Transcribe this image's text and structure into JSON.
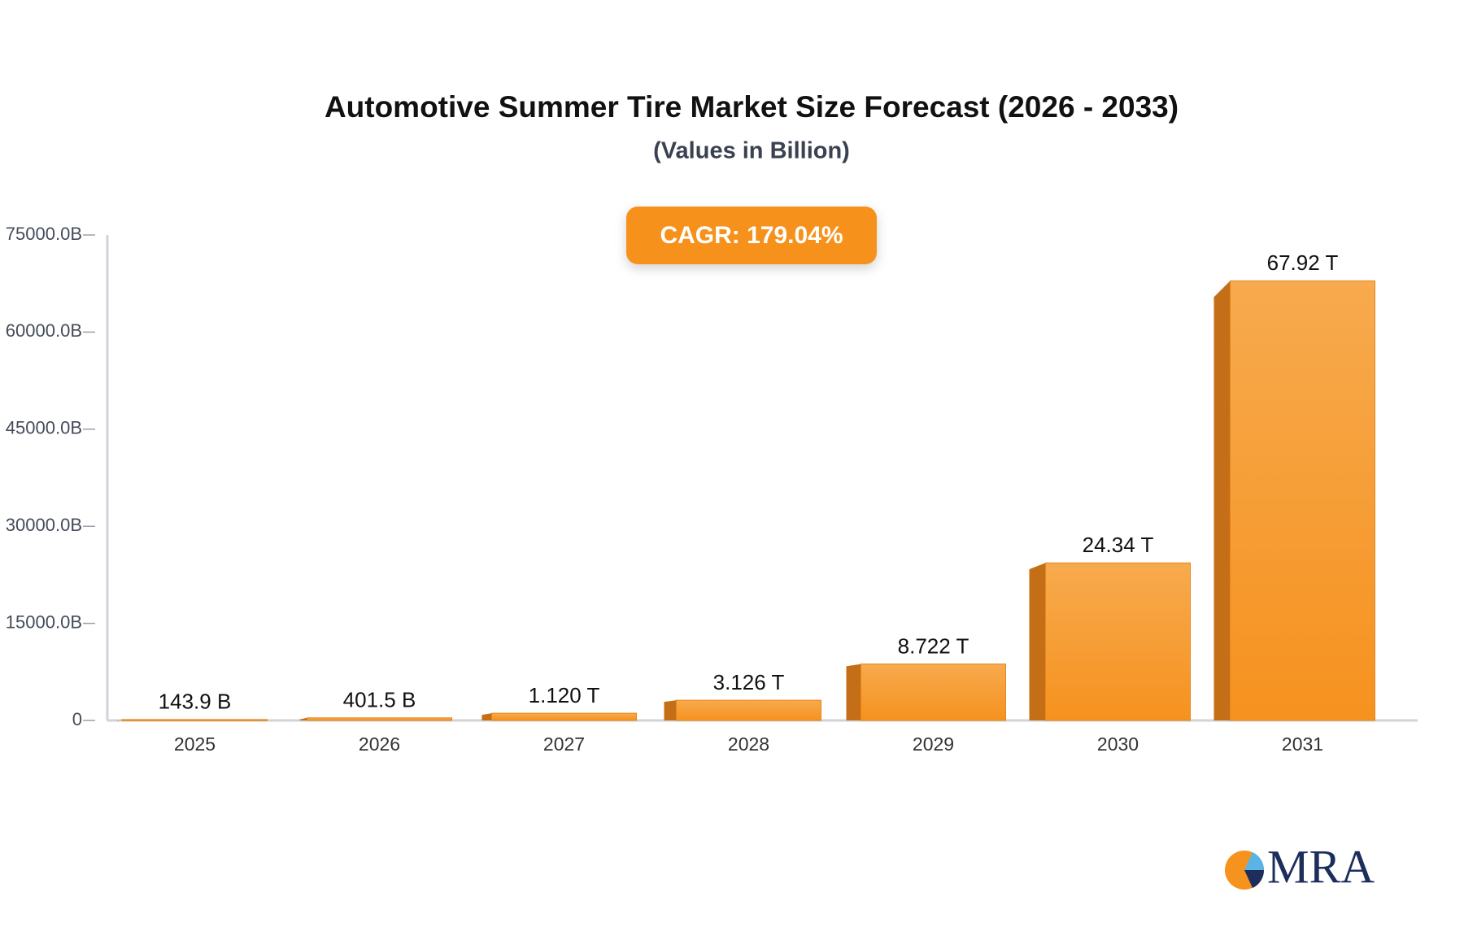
{
  "chart_data": {
    "type": "bar",
    "title": "Automotive Summer Tire Market Size Forecast (2026 - 2033)",
    "subtitle": "(Values in Billion)",
    "cagr": "CAGR: 179.04%",
    "categories": [
      "2025",
      "2026",
      "2027",
      "2028",
      "2029",
      "2030",
      "2031"
    ],
    "values": [
      143.9,
      401.5,
      1120,
      3126,
      8722,
      24340,
      67920
    ],
    "value_labels": [
      "143.9 B",
      "401.5 B",
      "1.120 T",
      "3.126 T",
      "8.722 T",
      "24.34 T",
      "67.92 T"
    ],
    "color": "#f6921e",
    "ylim": [
      0,
      75000
    ],
    "yticks": [
      0,
      {
        "value": 15000,
        "label": "15000.0B"
      },
      {
        "value": 30000,
        "label": "30000.0B"
      },
      {
        "value": 45000,
        "label": "45000.0B"
      },
      {
        "value": 60000,
        "label": "60000.0B"
      },
      {
        "value": 75000,
        "label": "75000.0B"
      }
    ],
    "grid": false
  },
  "logo": "MRA"
}
